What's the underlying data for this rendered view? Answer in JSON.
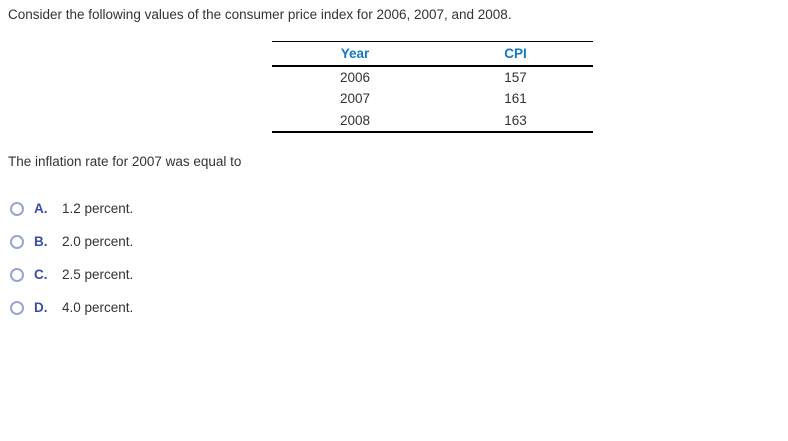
{
  "page": {
    "intro": "Consider the following values of the consumer price index for 2006, 2007, and 2008.",
    "question": "The inflation rate for 2007 was equal to"
  },
  "table": {
    "headers": {
      "year": "Year",
      "cpi": "CPI"
    },
    "rows": [
      {
        "year": "2006",
        "cpi": "157"
      },
      {
        "year": "2007",
        "cpi": "161"
      },
      {
        "year": "2008",
        "cpi": "163"
      }
    ]
  },
  "options": [
    {
      "letter": "A.",
      "text": "1.2 percent."
    },
    {
      "letter": "B.",
      "text": "2.0 percent."
    },
    {
      "letter": "C.",
      "text": "2.5 percent."
    },
    {
      "letter": "D.",
      "text": "4.0 percent."
    }
  ],
  "colors": {
    "table_header_blue": "#1778bf",
    "option_letter_blue": "#3b4da6",
    "radio_border": "#98a5d2",
    "body_text": "#333333",
    "table_rule": "#000000"
  }
}
